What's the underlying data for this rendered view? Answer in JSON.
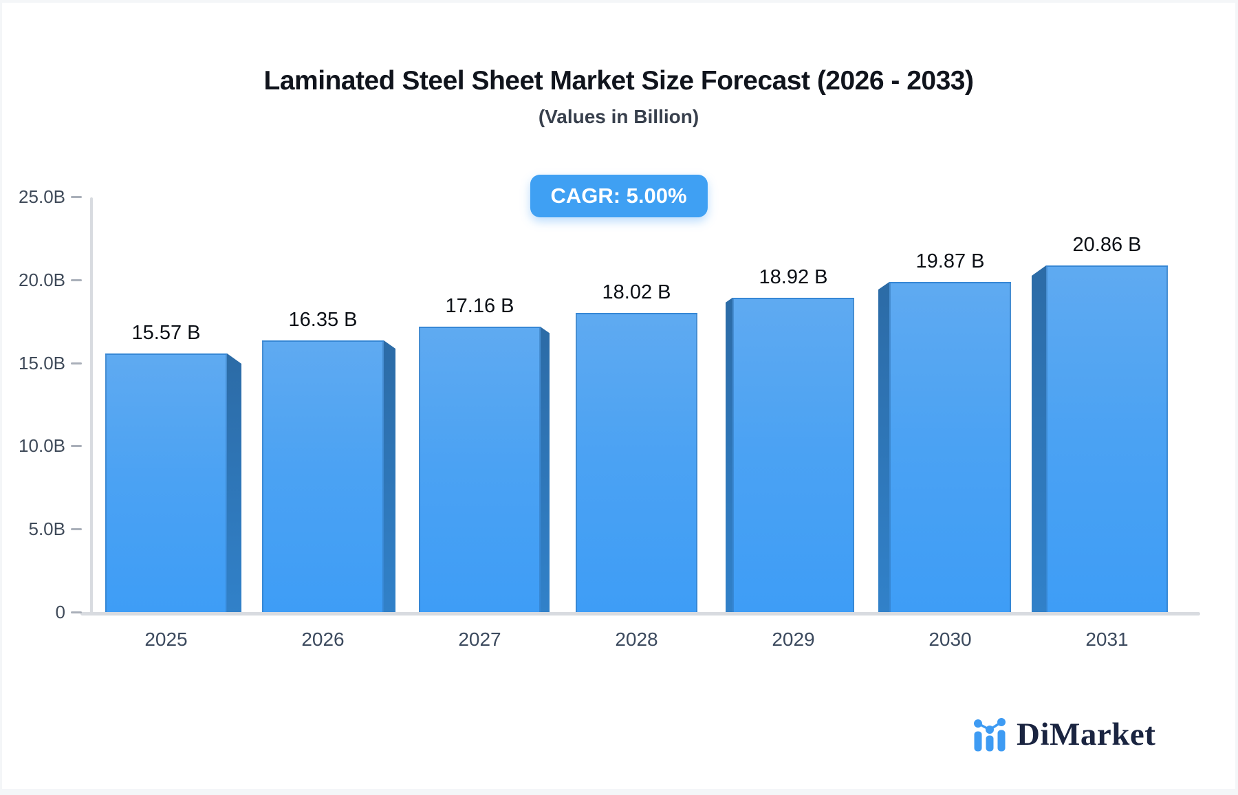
{
  "header": {
    "title": "Laminated Steel Sheet Market Size Forecast (2026 - 2033)",
    "subtitle": "(Values in Billion)",
    "cagr_label": "CAGR: 5.00%"
  },
  "chart_data": {
    "type": "bar",
    "title": "Laminated Steel Sheet Market Size Forecast (2026 - 2033)",
    "subtitle": "(Values in Billion)",
    "cagr_percent": "5.00%",
    "categories": [
      "2025",
      "2026",
      "2027",
      "2028",
      "2029",
      "2030",
      "2031"
    ],
    "values": [
      15.57,
      16.35,
      17.16,
      18.02,
      18.92,
      19.87,
      20.86
    ],
    "value_labels": [
      "15.57 B",
      "16.35 B",
      "17.16 B",
      "18.02 B",
      "18.92 B",
      "19.87 B",
      "20.86 B"
    ],
    "y_ticks": [
      {
        "value": 0,
        "label": "0"
      },
      {
        "value": 5,
        "label": "5.0B"
      },
      {
        "value": 10,
        "label": "10.0B"
      },
      {
        "value": 15,
        "label": "15.0B"
      },
      {
        "value": 20,
        "label": "20.0B"
      },
      {
        "value": 25,
        "label": "25.0B"
      }
    ],
    "ylim": [
      0,
      25
    ],
    "grid": false,
    "legend": false,
    "bar_style": "3d-perspective-toward-center"
  },
  "colors": {
    "bar_face_top": "#5faaf1",
    "bar_face_mid": "#4ba2f3",
    "bar_face_bottom": "#3e9df6",
    "bar_side_top": "#2c6ba6",
    "bar_side_bottom": "#3181c9",
    "badge_bg": "#3fa0f3",
    "axis_line": "#d8dbe0",
    "tick": "#a9afb9",
    "tick_label": "#3f4a59",
    "value_label": "#0c1016",
    "logo_navy": "#1a2440",
    "logo_blue": "#3e9bf3"
  },
  "logo": {
    "text": "DiMarket",
    "icon": "mini-bar-line-chart-icon"
  }
}
